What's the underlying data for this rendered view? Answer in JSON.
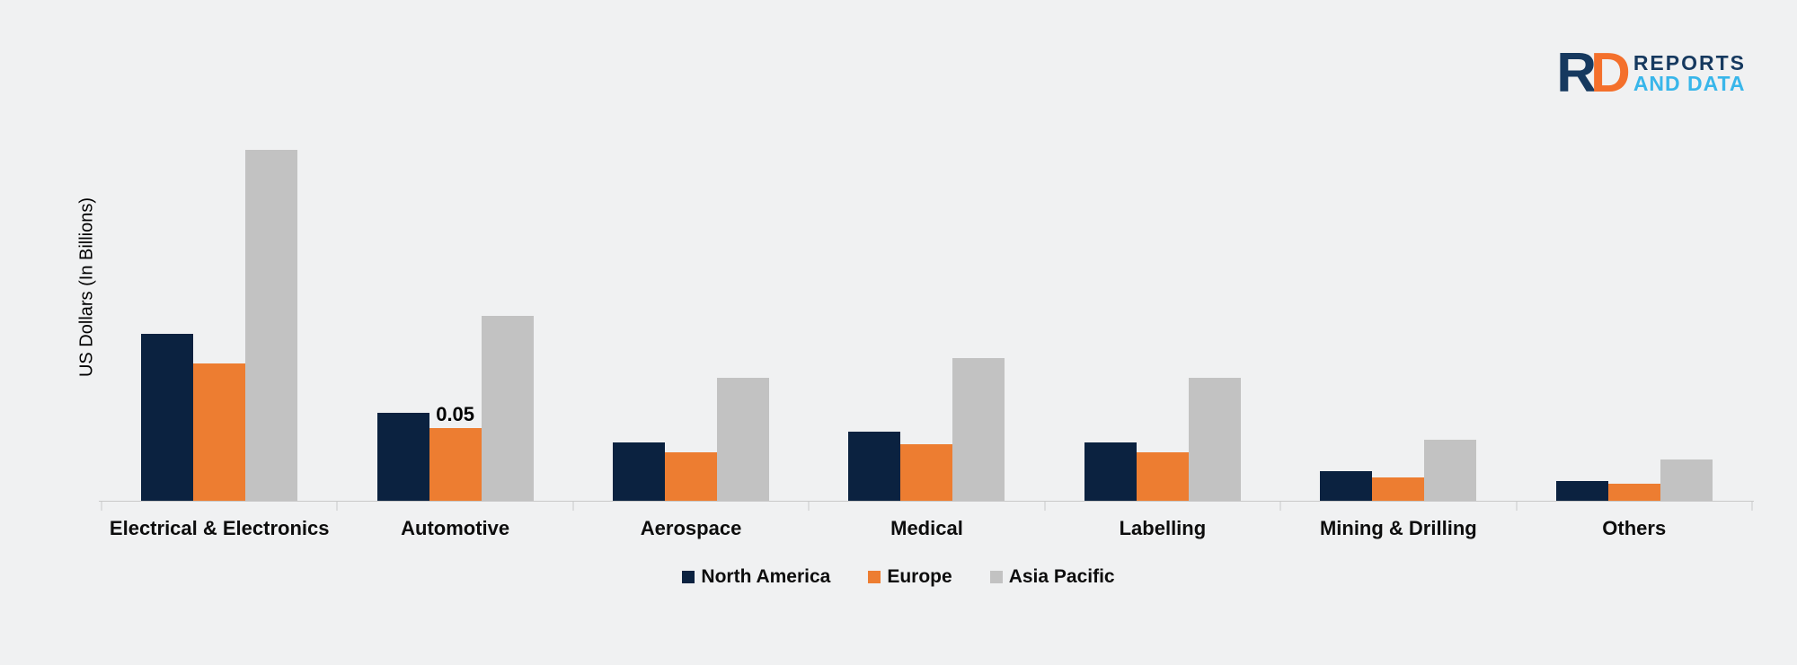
{
  "background": "#f0f1f2",
  "logo": {
    "monogram_r": "R",
    "monogram_d": "D",
    "line1": "REPORTS",
    "line2": "AND DATA",
    "colors": {
      "monogram_r": "#16395f",
      "monogram_d": "#f4702c",
      "line1": "#16395f",
      "line2": "#38b6ea"
    }
  },
  "chart_data": {
    "type": "bar",
    "title": "",
    "xlabel": "",
    "ylabel": "US Dollars (In Billions)",
    "categories": [
      "Electrical & Electronics",
      "Automotive",
      "Aerospace",
      "Medical",
      "Labelling",
      "Mining & Drilling",
      "Others"
    ],
    "series": [
      {
        "name": "North America",
        "color": "#0b2240",
        "values": [
          0.114,
          0.06,
          0.04,
          0.047,
          0.04,
          0.02,
          0.0135
        ]
      },
      {
        "name": "Europe",
        "color": "#ed7d31",
        "values": [
          0.094,
          0.05,
          0.033,
          0.0385,
          0.033,
          0.016,
          0.0115
        ]
      },
      {
        "name": "Asia Pacific",
        "color": "#c2c2c2",
        "values": [
          0.24,
          0.1265,
          0.084,
          0.0975,
          0.084,
          0.042,
          0.028
        ]
      }
    ],
    "annotations": [
      {
        "category_index": 1,
        "series_index": 1,
        "text": "0.05"
      }
    ],
    "ylim": [
      0,
      0.27
    ],
    "grid": false,
    "legend_position": "bottom"
  }
}
